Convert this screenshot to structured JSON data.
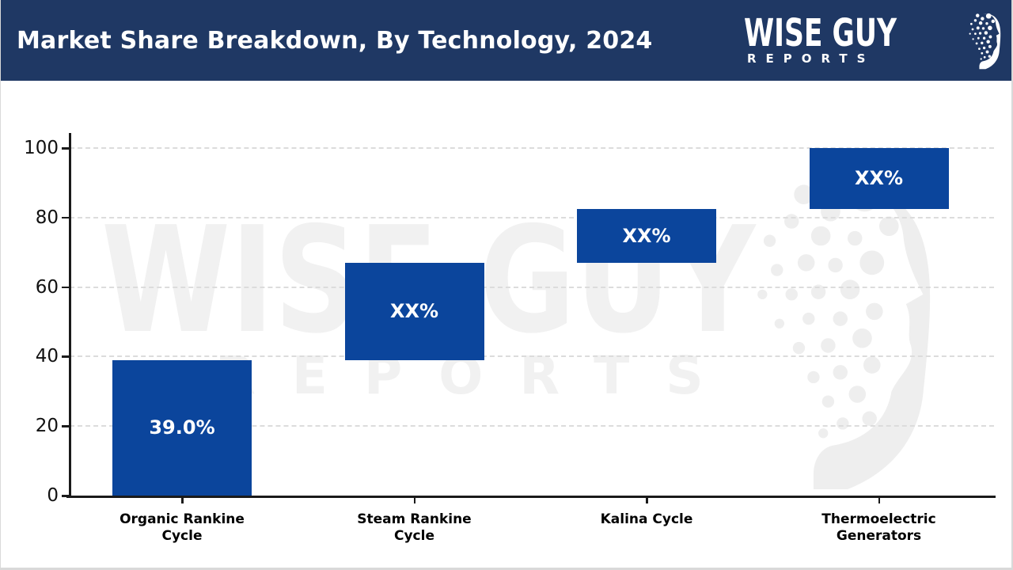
{
  "header": {
    "title": "Market Share Breakdown, By Technology, 2024",
    "logo_line1": "WISE GUY",
    "logo_line2": "REPORTS"
  },
  "watermark": {
    "line1": "WISE GUY",
    "line2": "REPORTS"
  },
  "chart_data": {
    "type": "bar",
    "subtype": "floating-stacked-breakdown",
    "title": "Market Share Breakdown, By Technology, 2024",
    "categories": [
      "Organic Rankine Cycle",
      "Steam Rankine Cycle",
      "Kalina Cycle",
      "Thermoelectric Generators"
    ],
    "category_lines": [
      [
        "Organic Rankine",
        "Cycle"
      ],
      [
        "Steam Rankine",
        "Cycle"
      ],
      [
        "Kalina Cycle"
      ],
      [
        "Thermoelectric",
        "Generators"
      ]
    ],
    "segments": [
      {
        "category": "Organic Rankine Cycle",
        "from": 0,
        "to": 39,
        "value": 39.0,
        "label": "39.0%"
      },
      {
        "category": "Steam Rankine Cycle",
        "from": 39,
        "to": 67,
        "value": 28.0,
        "label": "XX%"
      },
      {
        "category": "Kalina Cycle",
        "from": 67,
        "to": 82.5,
        "value": 15.5,
        "label": "XX%"
      },
      {
        "category": "Thermoelectric Generators",
        "from": 82.5,
        "to": 100,
        "value": 17.5,
        "label": "XX%"
      }
    ],
    "yticks": [
      0,
      20,
      40,
      60,
      80,
      100
    ],
    "ylim": [
      0,
      104
    ],
    "xlabel": "",
    "ylabel": "",
    "grid": "horizontal-dashed",
    "legend": "none",
    "colors": {
      "bar": "#0b459c",
      "bar_label": "#ffffff",
      "axis": "#1a1a1a",
      "gridline": "#dcdcdc",
      "header_bg": "#1f3864",
      "watermark": "#f1f1f1"
    }
  }
}
